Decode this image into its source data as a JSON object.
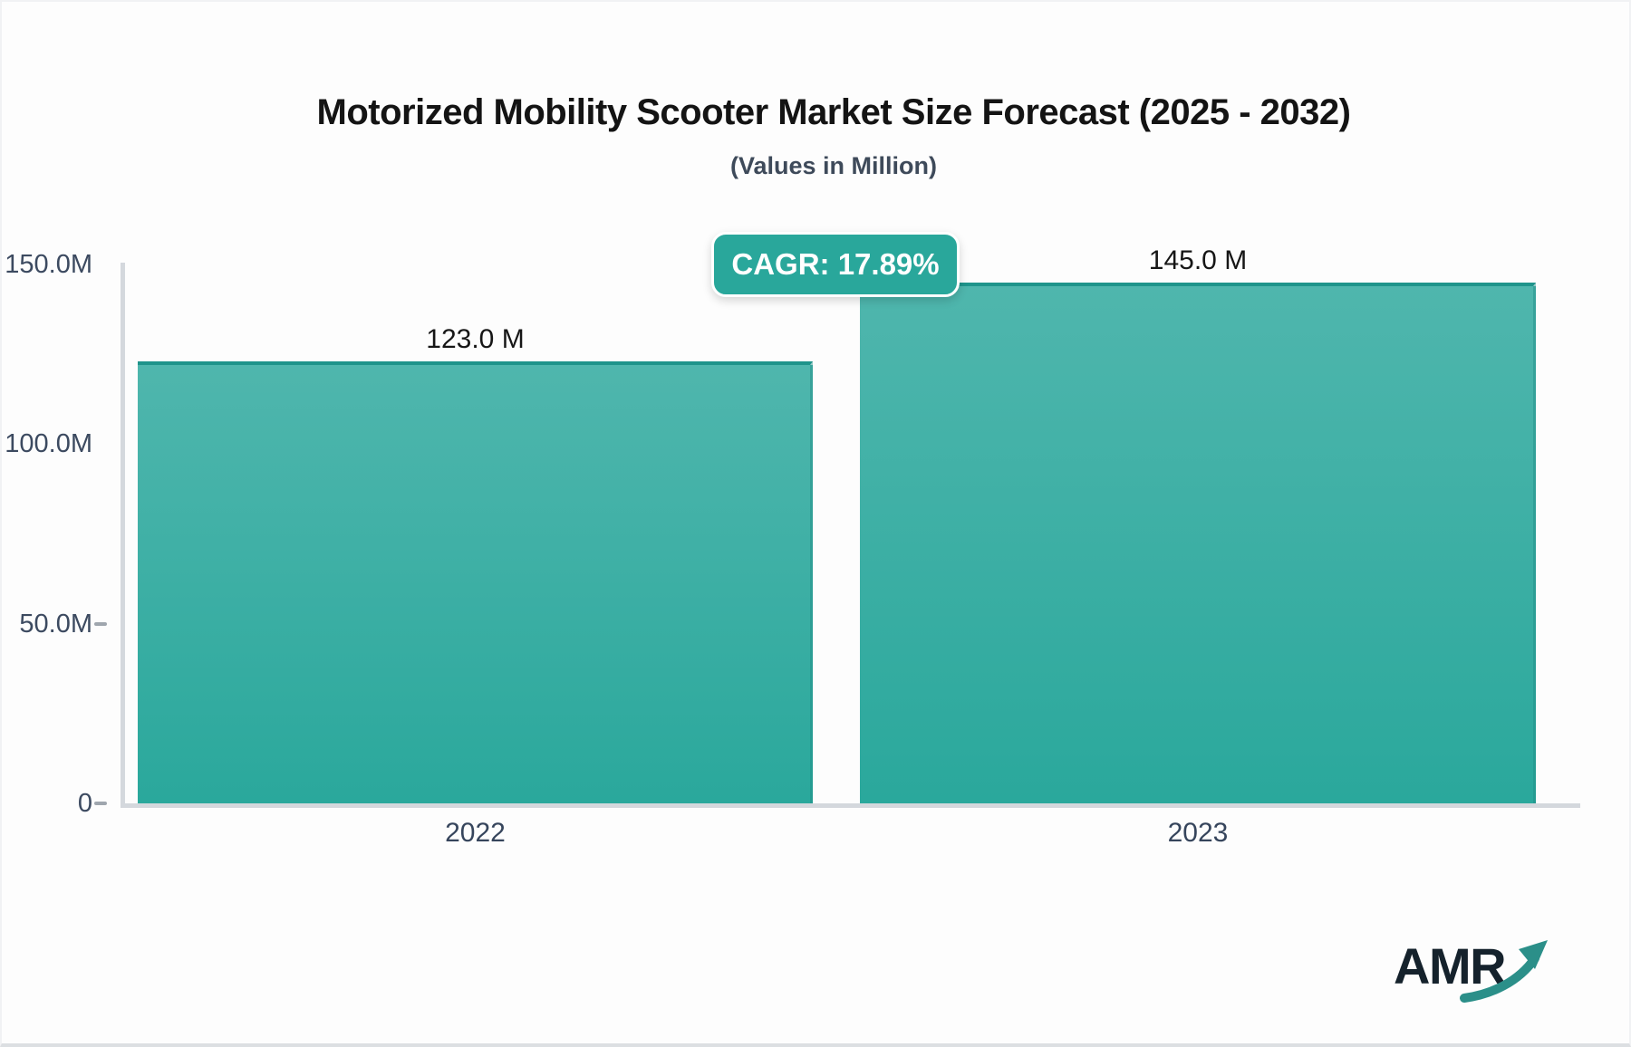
{
  "chart_data": {
    "type": "bar",
    "title": "Motorized Mobility Scooter Market Size Forecast (2025 - 2032)",
    "subtitle": "(Values in Million)",
    "categories": [
      "2022",
      "2023"
    ],
    "values": [
      123.0,
      145.0
    ],
    "value_labels": [
      "123.0 M",
      "145.0 M"
    ],
    "unit": "Million",
    "ylim": [
      0,
      150
    ],
    "yticks": [
      {
        "label": "150.0M",
        "value": 150,
        "dash": false
      },
      {
        "label": "100.0M",
        "value": 100,
        "dash": false
      },
      {
        "label": "50.0M",
        "value": 50,
        "dash": true
      },
      {
        "label": "0",
        "value": 0,
        "dash": true
      }
    ],
    "grid": false,
    "legend": false,
    "annotations": [
      {
        "kind": "badge",
        "text": "CAGR: 17.89%"
      }
    ],
    "colors": {
      "bar_gradient_top": "#4fb6ad",
      "bar_gradient_bottom": "#2aa89c",
      "bar_top_stroke": "#1f948b",
      "badge_background": "#29a79b",
      "badge_text": "#ffffff",
      "axis_line": "#d4d8dd",
      "tick_label": "#3c4a60",
      "data_label": "#161616"
    }
  },
  "logo": {
    "text": "AMR",
    "text_color": "#15222c",
    "arrow_color": "#2b8f89"
  }
}
